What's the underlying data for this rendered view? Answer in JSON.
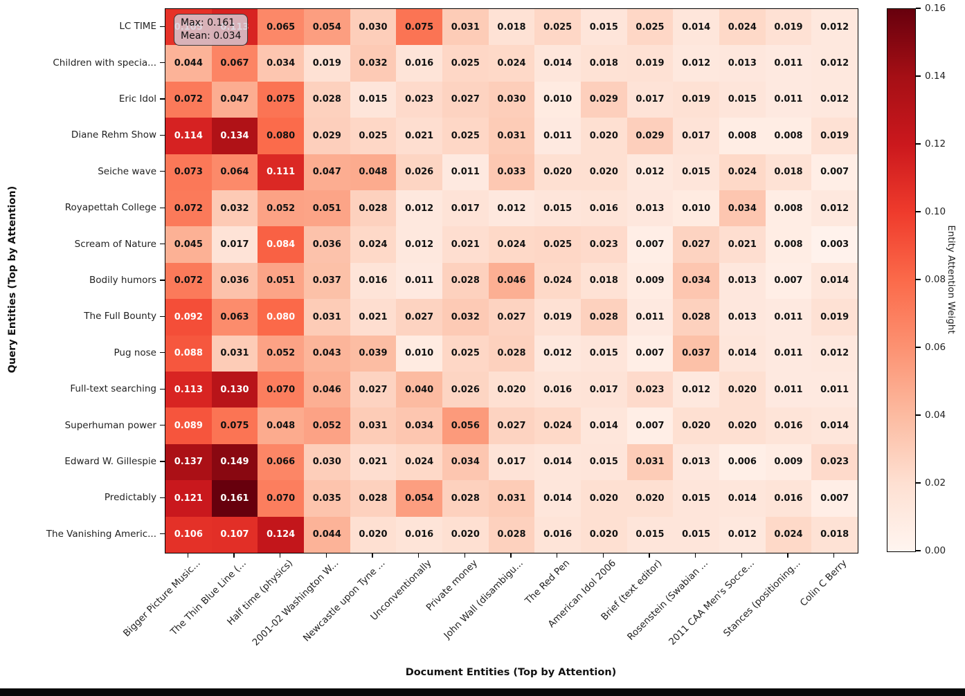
{
  "tooltip": {
    "max_label": "Max: 0.161",
    "mean_label": "Mean: 0.034"
  },
  "chart_data": {
    "type": "heatmap",
    "xlabel": "Document Entities (Top by Attention)",
    "ylabel": "Query Entities (Top by Attention)",
    "colorbar_label": "Entity Attention Weight",
    "colormap": "Reds",
    "colormap_stops": [
      "#fff5f0",
      "#fee0d2",
      "#fcbba1",
      "#fc9272",
      "#fb6a4a",
      "#ef3b2c",
      "#cb181d",
      "#a50f15",
      "#67000d"
    ],
    "vmin": 0.0,
    "vmax": 0.16,
    "colorbar_ticks": [
      0.16,
      0.14,
      0.12,
      0.1,
      0.08,
      0.06,
      0.04,
      0.02,
      0.0
    ],
    "annotations": {
      "max": 0.161,
      "mean": 0.034
    },
    "x_categories": [
      "Bigger Picture Music...",
      "The Thin Blue Line (...",
      "Half time (physics)",
      "2001-02 Washington W...",
      "Newcastle upon Tyne ...",
      "Unconventionally",
      "Private money",
      "John Wall (disambigu...",
      "The Red Pen",
      "American Idol 2006",
      "Brief (text editor)",
      "Rosenstein (Swabian ...",
      "2011 CAA Men's Socce...",
      "Stances (positioning...",
      "Colin C Berry"
    ],
    "y_categories": [
      "LC TIME",
      "Children with specia...",
      "Eric Idol",
      "Diane Rehm Show",
      "Seiche wave",
      "Royapettah College",
      "Scream of Nature",
      "Bodily humors",
      "The Full Bounty",
      "Pug nose",
      "Full-text searching",
      "Superhuman power",
      "Edward W. Gillespie",
      "Predictably",
      "The Vanishing Americ..."
    ],
    "values": [
      [
        0.105,
        0.113,
        0.065,
        0.054,
        0.03,
        0.075,
        0.031,
        0.018,
        0.025,
        0.015,
        0.025,
        0.014,
        0.024,
        0.019,
        0.012
      ],
      [
        0.044,
        0.067,
        0.034,
        0.019,
        0.032,
        0.016,
        0.025,
        0.024,
        0.014,
        0.018,
        0.019,
        0.012,
        0.013,
        0.011,
        0.012
      ],
      [
        0.072,
        0.047,
        0.075,
        0.028,
        0.015,
        0.023,
        0.027,
        0.03,
        0.01,
        0.029,
        0.017,
        0.019,
        0.015,
        0.011,
        0.012
      ],
      [
        0.114,
        0.134,
        0.0796,
        0.029,
        0.025,
        0.021,
        0.025,
        0.031,
        0.011,
        0.02,
        0.029,
        0.017,
        0.008,
        0.008,
        0.019
      ],
      [
        0.073,
        0.064,
        0.111,
        0.047,
        0.048,
        0.026,
        0.011,
        0.033,
        0.02,
        0.02,
        0.012,
        0.015,
        0.024,
        0.018,
        0.007
      ],
      [
        0.072,
        0.032,
        0.052,
        0.051,
        0.028,
        0.012,
        0.017,
        0.012,
        0.015,
        0.016,
        0.013,
        0.01,
        0.034,
        0.008,
        0.012
      ],
      [
        0.045,
        0.017,
        0.084,
        0.036,
        0.024,
        0.012,
        0.021,
        0.024,
        0.025,
        0.023,
        0.007,
        0.027,
        0.021,
        0.008,
        0.003
      ],
      [
        0.072,
        0.036,
        0.051,
        0.037,
        0.016,
        0.011,
        0.028,
        0.046,
        0.024,
        0.018,
        0.009,
        0.034,
        0.013,
        0.007,
        0.014
      ],
      [
        0.092,
        0.063,
        0.0804,
        0.031,
        0.021,
        0.027,
        0.032,
        0.027,
        0.019,
        0.028,
        0.011,
        0.028,
        0.013,
        0.011,
        0.019
      ],
      [
        0.088,
        0.031,
        0.052,
        0.043,
        0.039,
        0.01,
        0.025,
        0.028,
        0.012,
        0.015,
        0.007,
        0.037,
        0.014,
        0.011,
        0.012
      ],
      [
        0.113,
        0.13,
        0.07,
        0.046,
        0.027,
        0.04,
        0.026,
        0.02,
        0.016,
        0.017,
        0.023,
        0.012,
        0.02,
        0.011,
        0.011
      ],
      [
        0.089,
        0.075,
        0.048,
        0.052,
        0.031,
        0.034,
        0.056,
        0.027,
        0.024,
        0.014,
        0.007,
        0.02,
        0.02,
        0.016,
        0.014
      ],
      [
        0.137,
        0.149,
        0.066,
        0.03,
        0.021,
        0.024,
        0.034,
        0.017,
        0.014,
        0.015,
        0.031,
        0.013,
        0.006,
        0.009,
        0.023
      ],
      [
        0.121,
        0.161,
        0.07,
        0.035,
        0.028,
        0.054,
        0.028,
        0.031,
        0.014,
        0.02,
        0.02,
        0.015,
        0.014,
        0.016,
        0.007
      ],
      [
        0.106,
        0.107,
        0.124,
        0.044,
        0.02,
        0.016,
        0.02,
        0.028,
        0.016,
        0.02,
        0.015,
        0.015,
        0.012,
        0.024,
        0.018
      ]
    ]
  }
}
